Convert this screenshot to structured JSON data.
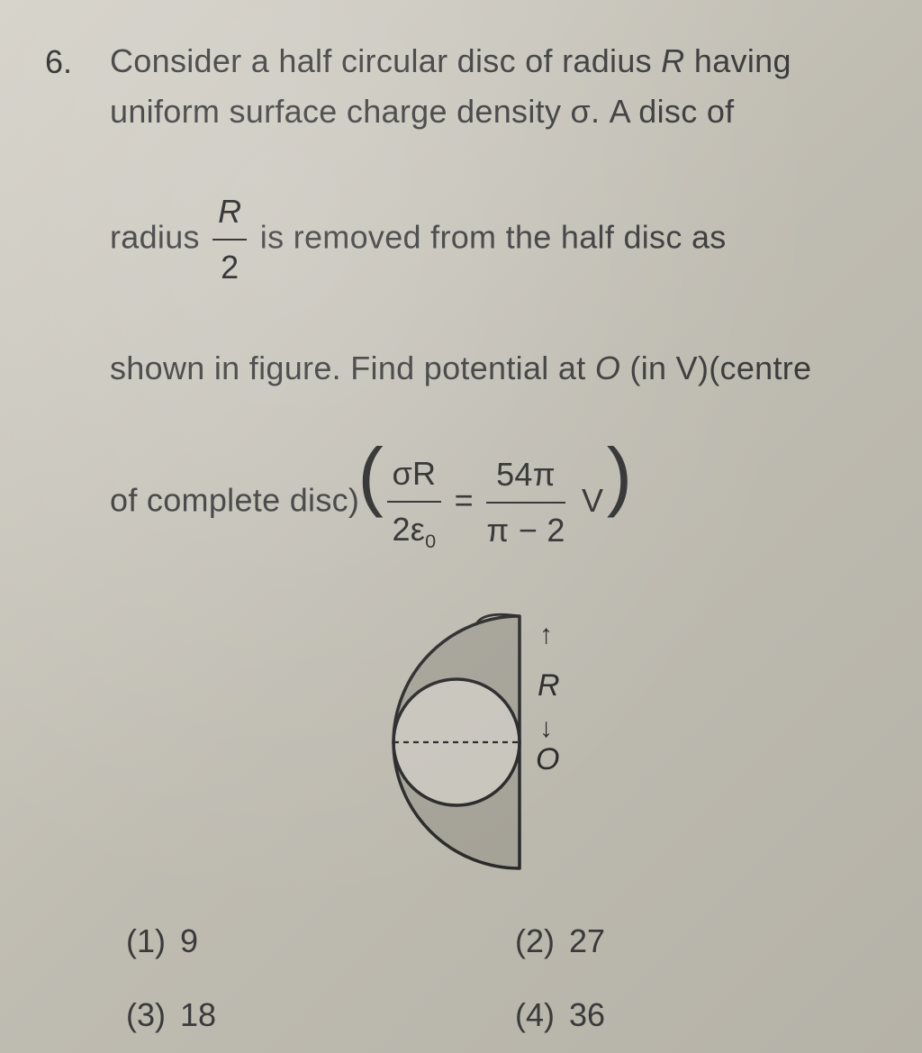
{
  "question": {
    "number": "6.",
    "line1_a": "Consider a half circular disc of radius ",
    "R1": "R",
    "line1_b": " having",
    "line2_a": "uniform surface charge density σ. A disc of",
    "line3_a": "radius ",
    "frac_R2_num": "R",
    "frac_R2_den": "2",
    "line3_b": " is removed from the half disc as",
    "line4": "shown in figure. Find potential at ",
    "O": "O",
    "line4_b": " (in V)(centre",
    "line5_a": "of complete disc)",
    "eq_frac1_num": "σR",
    "eq_frac1_den_a": "2ε",
    "eq_frac1_den_sub": "0",
    "eq_equals": " = ",
    "eq_frac2_num": "54π",
    "eq_frac2_den": "π − 2",
    "eq_V": "V"
  },
  "diagram": {
    "labels": {
      "R": "R",
      "O": "O",
      "arrow_up": "↑",
      "arrow_down": "↓"
    },
    "colors": {
      "stroke": "#2a2a2a",
      "fill_shade": "#a5a298",
      "fill_light": "#c8c5bd"
    },
    "stroke_width": 3.5,
    "arc_radius": 140,
    "circle_radius": 70
  },
  "options": {
    "1": {
      "num": "(1)",
      "text": "9"
    },
    "2": {
      "num": "(2)",
      "text": "27"
    },
    "3": {
      "num": "(3)",
      "text": "18"
    },
    "4": {
      "num": "(4)",
      "text": "36"
    }
  }
}
